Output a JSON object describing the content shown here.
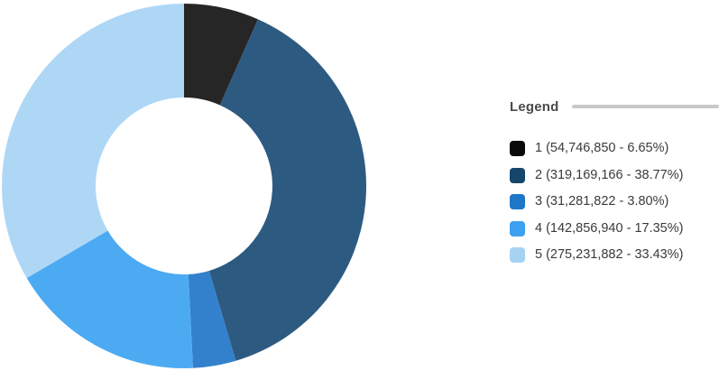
{
  "legend": {
    "title": "Legend"
  },
  "chart_data": {
    "type": "pie",
    "subtype": "donut",
    "start_angle_deg": 0,
    "direction": "clockwise",
    "inner_radius_ratio": 0.485,
    "legend_position": "right",
    "total_value": 823286660,
    "items": [
      {
        "name": "1",
        "value": 54746850,
        "percent": 6.65,
        "label": "1 (54,746,850 - 6.65%)",
        "swatch_color": "#0a0a0a",
        "slice_color": "#262626"
      },
      {
        "name": "2",
        "value": 319169166,
        "percent": 38.77,
        "label": "2 (319,169,166 - 38.77%)",
        "swatch_color": "#17466b",
        "slice_color": "#2d5a80"
      },
      {
        "name": "3",
        "value": 31281822,
        "percent": 3.8,
        "label": "3 (31,281,822 - 3.80%)",
        "swatch_color": "#1e78c8",
        "slice_color": "#3381cc"
      },
      {
        "name": "4",
        "value": 142856940,
        "percent": 17.35,
        "label": "4 (142,856,940 - 17.35%)",
        "swatch_color": "#3da1ef",
        "slice_color": "#4caaf2"
      },
      {
        "name": "5",
        "value": 275231882,
        "percent": 33.43,
        "label": "5 (275,231,882 - 33.43%)",
        "swatch_color": "#a7d3f3",
        "slice_color": "#aed7f6"
      }
    ]
  }
}
